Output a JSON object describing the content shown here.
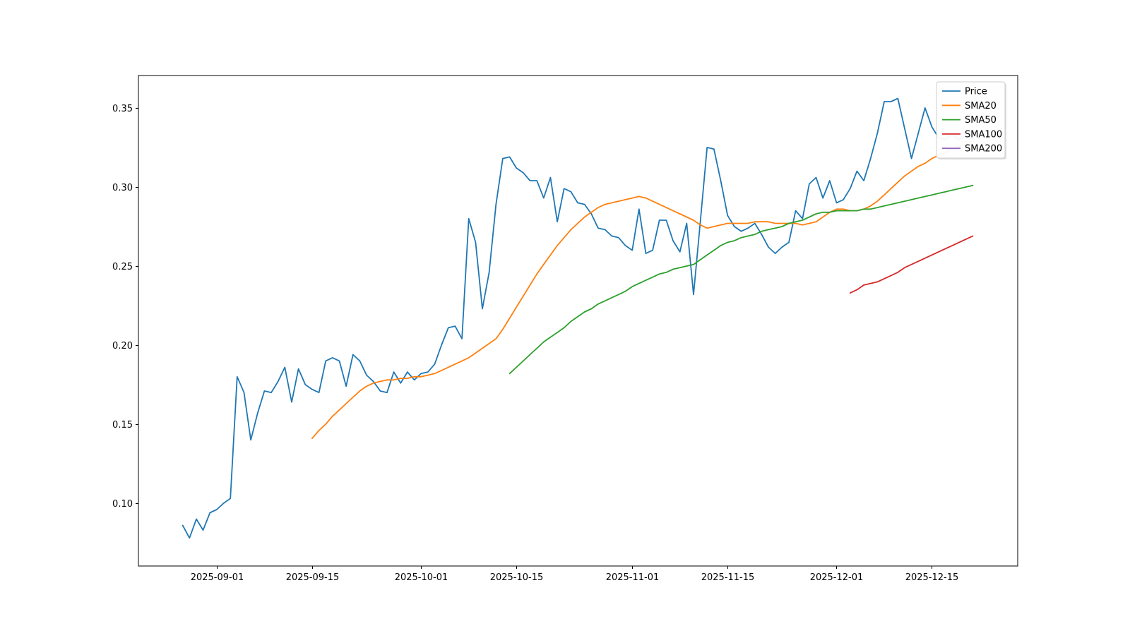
{
  "chart_data": {
    "type": "line",
    "title": "",
    "xlabel": "",
    "ylabel": "",
    "grid": false,
    "legend_position": "upper right",
    "x_epoch": "2025-09-01",
    "x_range_days": [
      -11.5,
      117.6
    ],
    "ylim": [
      0.0603,
      0.3705
    ],
    "x_ticks": [
      "2025-09-01",
      "2025-09-15",
      "2025-10-01",
      "2025-10-15",
      "2025-11-01",
      "2025-11-15",
      "2025-12-01",
      "2025-12-15"
    ],
    "y_ticks": [
      0.1,
      0.15,
      0.2,
      0.25,
      0.3,
      0.35
    ],
    "y_tick_labels": [
      "0.10",
      "0.15",
      "0.20",
      "0.25",
      "0.30",
      "0.35"
    ],
    "series": [
      {
        "name": "Price",
        "color": "#1f77b4",
        "start_date": "2025-08-27",
        "values": [
          0.086,
          0.078,
          0.09,
          0.083,
          0.094,
          0.096,
          0.1,
          0.103,
          0.18,
          0.17,
          0.14,
          0.157,
          0.171,
          0.17,
          0.177,
          0.186,
          0.164,
          0.185,
          0.175,
          0.172,
          0.17,
          0.19,
          0.192,
          0.19,
          0.174,
          0.194,
          0.19,
          0.181,
          0.177,
          0.171,
          0.17,
          0.183,
          0.176,
          0.183,
          0.178,
          0.182,
          0.183,
          0.188,
          0.2,
          0.211,
          0.212,
          0.204,
          0.28,
          0.265,
          0.223,
          0.246,
          0.289,
          0.318,
          0.319,
          0.312,
          0.309,
          0.304,
          0.304,
          0.293,
          0.306,
          0.278,
          0.299,
          0.297,
          0.29,
          0.289,
          0.283,
          0.274,
          0.273,
          0.269,
          0.268,
          0.263,
          0.26,
          0.286,
          0.258,
          0.26,
          0.279,
          0.279,
          0.266,
          0.259,
          0.277,
          0.232,
          0.278,
          0.325,
          0.324,
          0.304,
          0.282,
          0.275,
          0.272,
          0.274,
          0.277,
          0.27,
          0.262,
          0.258,
          0.262,
          0.265,
          0.285,
          0.28,
          0.302,
          0.306,
          0.293,
          0.304,
          0.29,
          0.292,
          0.299,
          0.31,
          0.304,
          0.318,
          0.334,
          0.354,
          0.354,
          0.356,
          0.337,
          0.318,
          0.334,
          0.35,
          0.338,
          0.331,
          0.33,
          0.333,
          0.33,
          0.332,
          0.33
        ]
      },
      {
        "name": "SMA20",
        "color": "#ff7f0e",
        "start_date": "2025-09-15",
        "values": [
          0.141,
          0.146,
          0.15,
          0.155,
          0.159,
          0.163,
          0.167,
          0.171,
          0.174,
          0.176,
          0.177,
          0.178,
          0.178,
          0.179,
          0.179,
          0.18,
          0.18,
          0.181,
          0.182,
          0.184,
          0.186,
          0.188,
          0.19,
          0.192,
          0.195,
          0.198,
          0.201,
          0.204,
          0.21,
          0.217,
          0.224,
          0.231,
          0.238,
          0.245,
          0.251,
          0.257,
          0.263,
          0.268,
          0.273,
          0.277,
          0.281,
          0.284,
          0.287,
          0.289,
          0.29,
          0.291,
          0.292,
          0.293,
          0.294,
          0.293,
          0.291,
          0.289,
          0.287,
          0.285,
          0.283,
          0.281,
          0.279,
          0.276,
          0.274,
          0.275,
          0.276,
          0.277,
          0.277,
          0.277,
          0.277,
          0.278,
          0.278,
          0.278,
          0.277,
          0.277,
          0.277,
          0.277,
          0.276,
          0.277,
          0.278,
          0.281,
          0.284,
          0.286,
          0.286,
          0.285,
          0.285,
          0.286,
          0.288,
          0.291,
          0.295,
          0.299,
          0.303,
          0.307,
          0.31,
          0.313,
          0.315,
          0.318,
          0.32,
          0.322,
          0.324,
          0.326,
          0.327,
          0.329
        ]
      },
      {
        "name": "SMA50",
        "color": "#2ca02c",
        "start_date": "2025-10-14",
        "values": [
          0.182,
          0.186,
          0.19,
          0.194,
          0.198,
          0.202,
          0.205,
          0.208,
          0.211,
          0.215,
          0.218,
          0.221,
          0.223,
          0.226,
          0.228,
          0.23,
          0.232,
          0.234,
          0.237,
          0.239,
          0.241,
          0.243,
          0.245,
          0.246,
          0.248,
          0.249,
          0.25,
          0.251,
          0.254,
          0.257,
          0.26,
          0.263,
          0.265,
          0.266,
          0.268,
          0.269,
          0.27,
          0.272,
          0.273,
          0.274,
          0.275,
          0.277,
          0.278,
          0.279,
          0.281,
          0.283,
          0.284,
          0.284,
          0.285,
          0.285,
          0.285,
          0.285,
          0.286,
          0.286,
          0.287,
          0.288,
          0.289,
          0.29,
          0.291,
          0.292,
          0.293,
          0.294,
          0.295,
          0.296,
          0.297,
          0.298,
          0.299,
          0.3,
          0.301
        ]
      },
      {
        "name": "SMA100",
        "color": "#d62728",
        "start_date": "2025-12-03",
        "values": [
          0.233,
          0.235,
          0.238,
          0.239,
          0.24,
          0.242,
          0.244,
          0.246,
          0.249,
          0.251,
          0.253,
          0.255,
          0.257,
          0.259,
          0.261,
          0.263,
          0.265,
          0.267,
          0.269
        ]
      },
      {
        "name": "SMA200",
        "color": "#9467bd",
        "start_date": null,
        "values": []
      }
    ],
    "legend_entries": [
      "Price",
      "SMA20",
      "SMA50",
      "SMA100",
      "SMA200"
    ]
  }
}
